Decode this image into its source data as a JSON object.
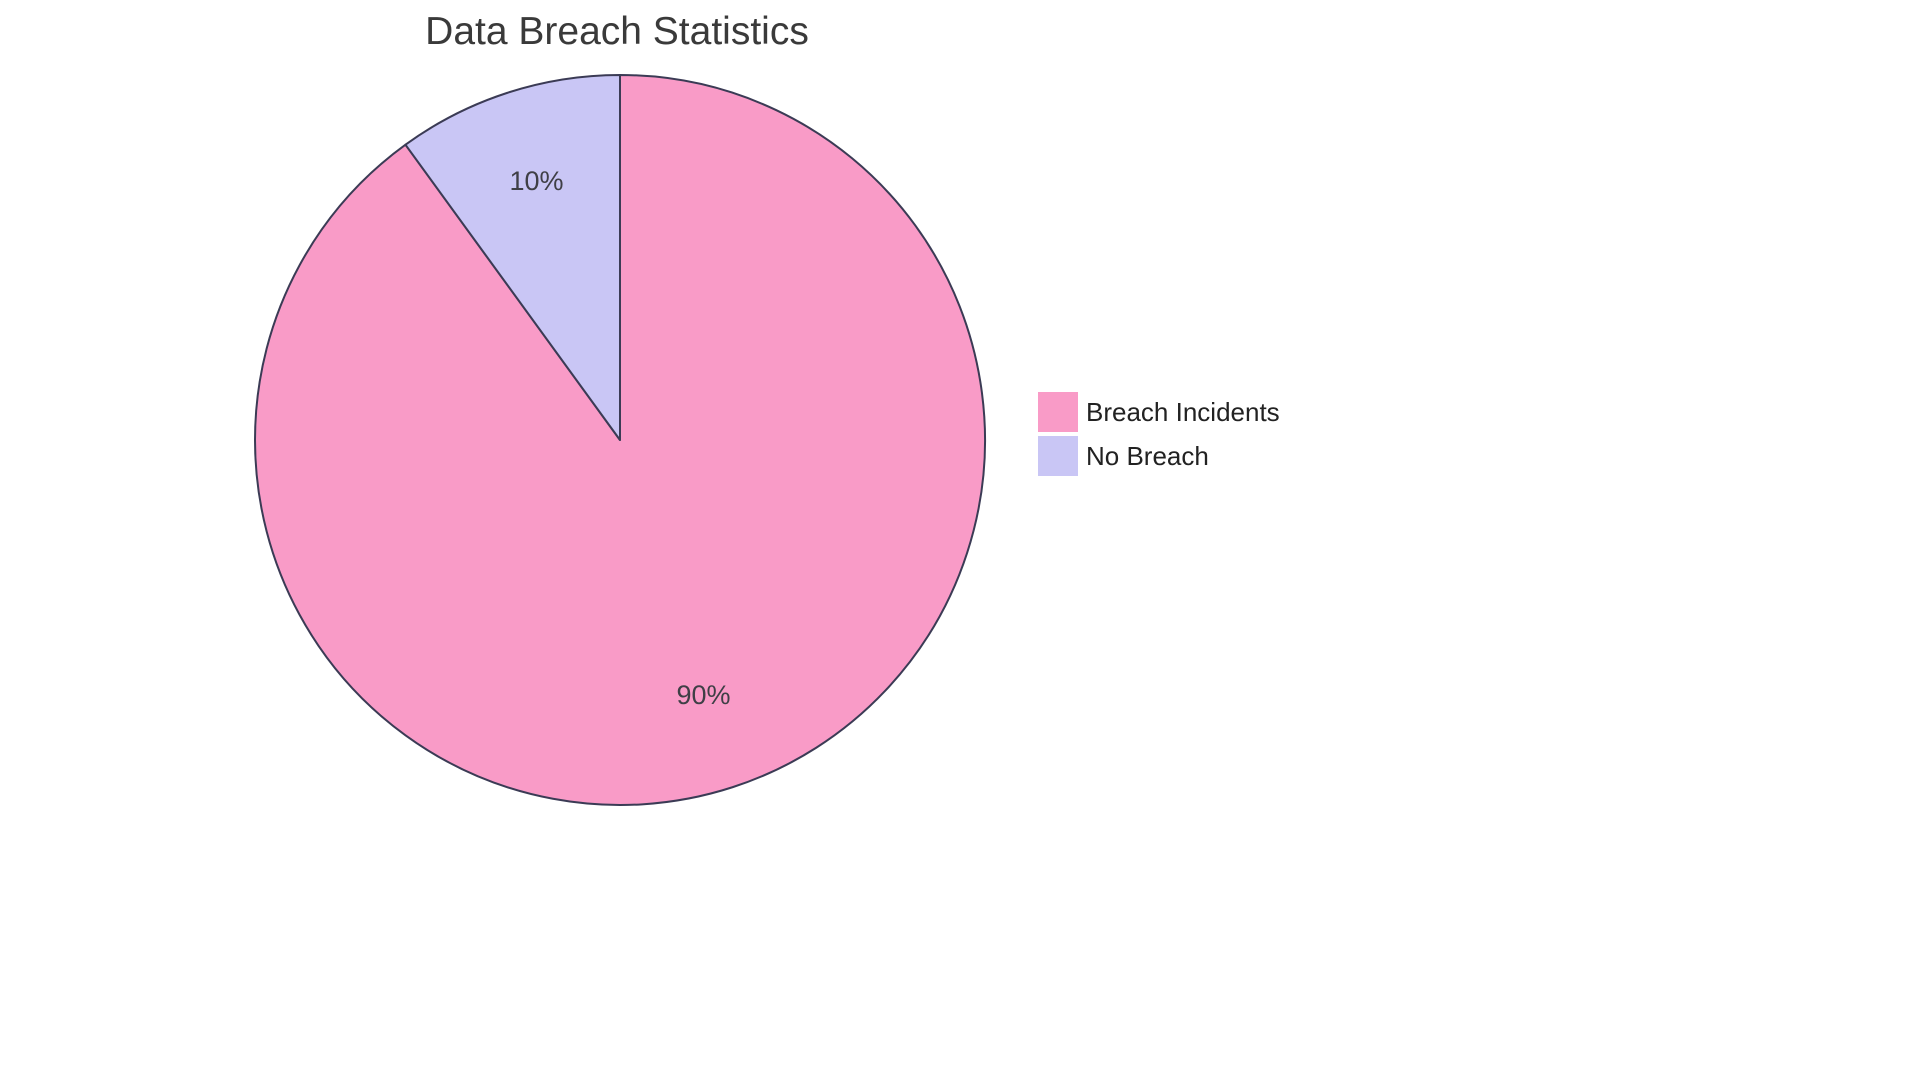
{
  "chart_data": {
    "type": "pie",
    "title": "Data Breach Statistics",
    "labels": [
      "Breach Incidents",
      "No Breach"
    ],
    "values": [
      90,
      10
    ],
    "percent_labels": [
      "90%",
      "10%"
    ],
    "colors": [
      "#F99BC7",
      "#C9C6F5"
    ],
    "stroke_color": "#3B3B55",
    "start_angle_deg": 90,
    "direction": "clockwise",
    "legend_position": "right",
    "legend_items": [
      {
        "label": "Breach Incidents"
      },
      {
        "label": "No Breach"
      }
    ]
  }
}
